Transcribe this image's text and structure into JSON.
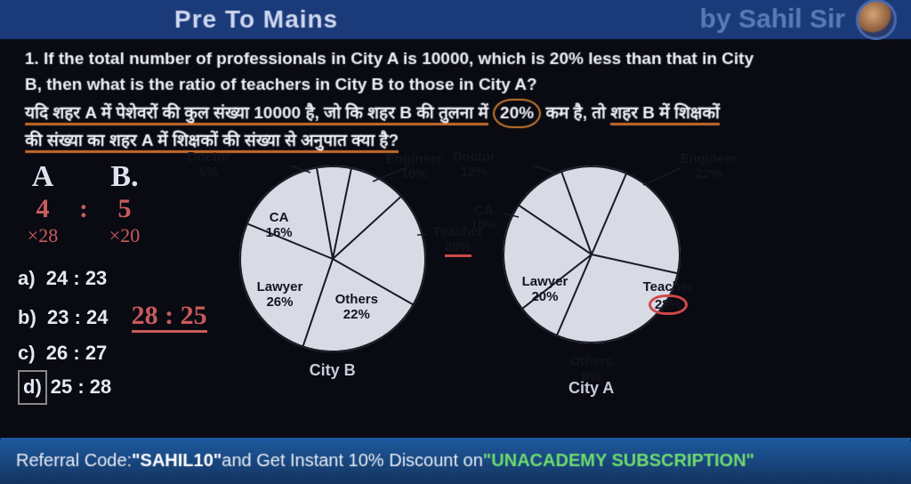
{
  "header": {
    "pre_mains": "Pre To Mains",
    "by": "by Sahil Sir"
  },
  "question": {
    "number": "1.",
    "line1a": "If the total number of professionals in City A is 10000, which is 20% less than that in City",
    "line2": "B, then what is the ratio of teachers in City B to those in City A?",
    "hindi1a": "यदि शहर A में पेशेवरों की कुल संख्या 10000 है, जो कि शहर B की तुलना में",
    "hindi1b": "20%",
    "hindi1c": " कम है, तो ",
    "hindi1d": "शहर B में शिक्षकों",
    "hindi2a": "की संख्या का शहर A में शिक्षकों की संख्या से अनुपात क्या है?"
  },
  "work": {
    "A": "A",
    "B": "B.",
    "four": "4",
    "colon": ":",
    "five": "5",
    "x28": "×28",
    "x20": "×20",
    "answer": "28 : 25"
  },
  "options": {
    "a": "24 : 23",
    "b": "23 : 24",
    "c": "26 : 27",
    "d": "25 : 28"
  },
  "pieB": {
    "radius": 105,
    "caption": "City B",
    "bg": "#d8dae4",
    "line": "#1a1a26",
    "slices": [
      {
        "label": "Doctor",
        "pct": "6%",
        "angle": 21.6
      },
      {
        "label": "Engineer",
        "pct": "10%",
        "angle": 36
      },
      {
        "label": "Teacher",
        "pct": "20%",
        "angle": 72,
        "underline": true
      },
      {
        "label": "Others",
        "pct": "22%",
        "angle": 79.2
      },
      {
        "label": "Lawyer",
        "pct": "26%",
        "angle": 93.6
      },
      {
        "label": "CA",
        "pct": "16%",
        "angle": 57.6
      }
    ],
    "label_fontsize": 15
  },
  "pieA": {
    "radius": 100,
    "caption": "City A",
    "bg": "#d8dae4",
    "line": "#1a1a26",
    "slices": [
      {
        "label": "Doctor",
        "pct": "12%",
        "angle": 43.2
      },
      {
        "label": "Engineer",
        "pct": "22%",
        "angle": 79.2
      },
      {
        "label": "Teacher",
        "pct": "28%",
        "angle": 100.8,
        "circled": true
      },
      {
        "label": "Others",
        "pct": "8%",
        "angle": 28.8
      },
      {
        "label": "Lawyer",
        "pct": "20%",
        "angle": 72
      },
      {
        "label": "CA",
        "pct": "10%",
        "angle": 36
      }
    ],
    "others_below": "Others",
    "others_below_pct": "8%",
    "label_fontsize": 15
  },
  "footer": {
    "pre": "Referral Code: ",
    "code": "\"SAHIL10\"",
    "mid": " and Get Instant 10% Discount on ",
    "unac": "\"UNACADEMY SUBSCRIPTION\""
  }
}
